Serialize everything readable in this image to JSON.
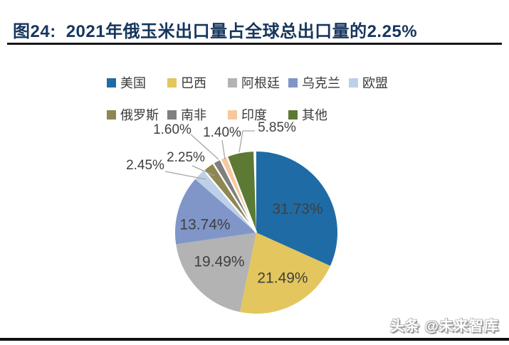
{
  "figure": {
    "label": "图24:",
    "title": "2021年俄玉米出口量占全球总出口量的2.25%"
  },
  "chart_data": {
    "type": "pie",
    "title": "2021年俄玉米出口量占全球总出口量的2.25%",
    "legend_position": "top",
    "start_angle_deg": 0,
    "direction": "clockwise",
    "slices": [
      {
        "label": "美国",
        "value": 31.73,
        "display": "31.73%",
        "color": "#1F6BA5"
      },
      {
        "label": "巴西",
        "value": 21.49,
        "display": "21.49%",
        "color": "#E3C65D"
      },
      {
        "label": "阿根廷",
        "value": 19.49,
        "display": "19.49%",
        "color": "#B3B3B3"
      },
      {
        "label": "乌克兰",
        "value": 13.74,
        "display": "13.74%",
        "color": "#8096C8"
      },
      {
        "label": "欧盟",
        "value": 2.45,
        "display": "2.45%",
        "color": "#BDD0E8"
      },
      {
        "label": "俄罗斯",
        "value": 2.25,
        "display": "2.25%",
        "color": "#8D8750"
      },
      {
        "label": "南非",
        "value": 1.6,
        "display": "1.60%",
        "color": "#7F7F7F"
      },
      {
        "label": "印度",
        "value": 1.4,
        "display": "1.40%",
        "color": "#F8C79C"
      },
      {
        "label": "其他",
        "value": 5.85,
        "display": "5.85%",
        "color": "#5C7A33"
      }
    ]
  },
  "watermark": "头条 @未来智库",
  "colors": {
    "title_text": "#17365D",
    "label_text": "#3F3F3F",
    "leader_line": "#A6A6A6",
    "rule": "#111111"
  }
}
